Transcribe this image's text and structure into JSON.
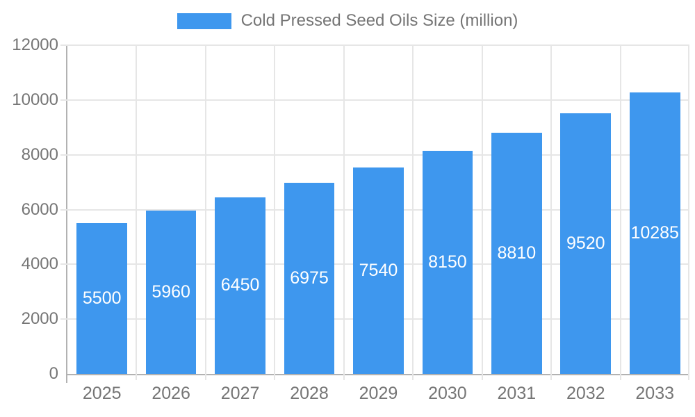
{
  "legend": {
    "label": "Cold Pressed Seed Oils Size (million)",
    "swatch_color": "#3E97EE"
  },
  "chart_data": {
    "type": "bar",
    "title": "Cold Pressed Seed Oils Size (million)",
    "categories": [
      "2025",
      "2026",
      "2027",
      "2028",
      "2029",
      "2030",
      "2031",
      "2032",
      "2033"
    ],
    "values": [
      5500,
      5960,
      6450,
      6975,
      7540,
      8150,
      8810,
      9520,
      10285
    ],
    "xlabel": "",
    "ylabel": "",
    "ylim": [
      0,
      12000
    ],
    "ytick_step": 2000,
    "ytick_labels": [
      "0",
      "2000",
      "4000",
      "6000",
      "8000",
      "10000",
      "12000"
    ],
    "grid": true,
    "legend_position": "top",
    "bar_color": "#3E97EE",
    "bar_label_color": "#ffffff",
    "axis_label_color": "#757575",
    "grid_color": "#e6e6e6",
    "axis_line_color": "#b2b2b2",
    "background_color": "#ffffff"
  }
}
